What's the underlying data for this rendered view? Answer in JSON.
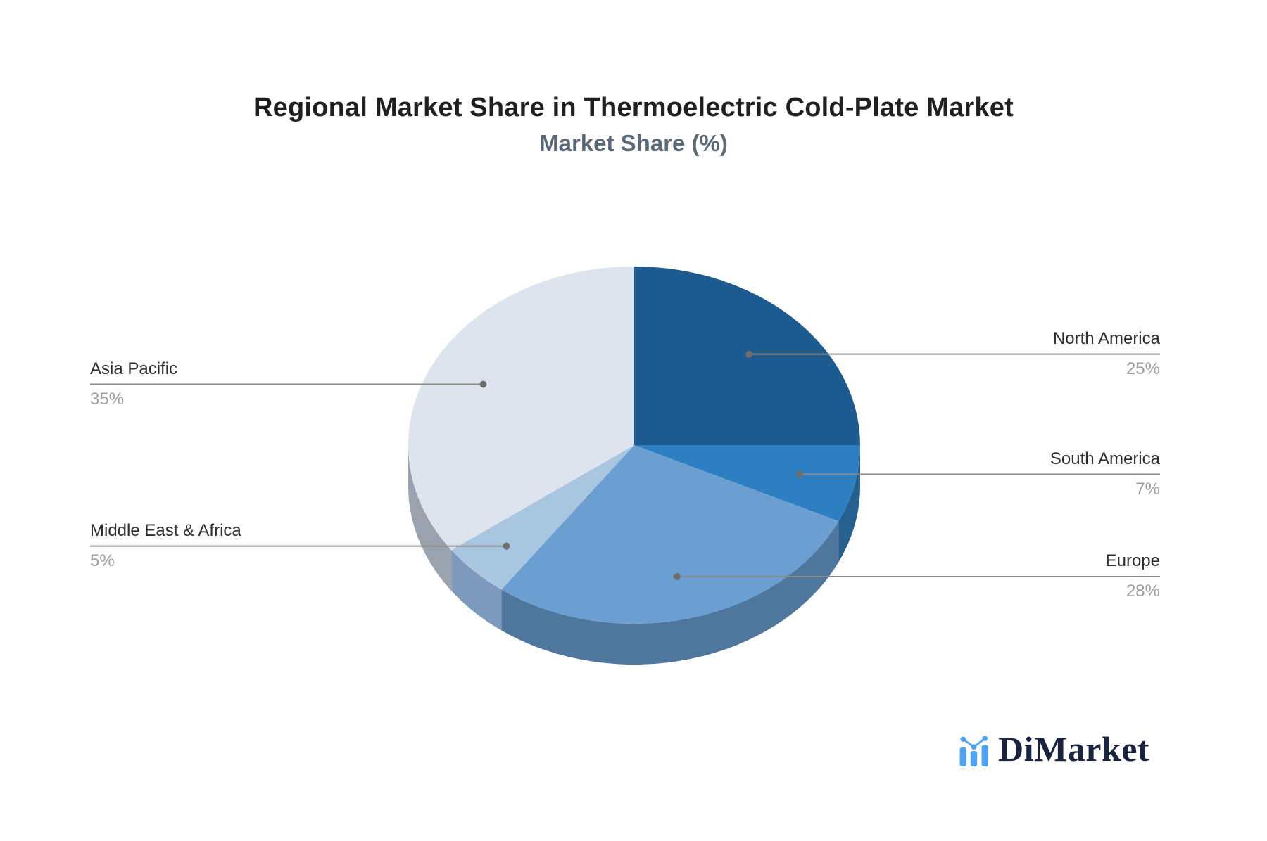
{
  "title": "Regional Market Share in Thermoelectric Cold-Plate Market",
  "subtitle": "Market Share (%)",
  "logo": {
    "text": "DiMarket",
    "icon": "bar-line-chart-icon",
    "icon_color": "#4da3f2",
    "text_color": "#1a2440"
  },
  "chart_data": {
    "type": "pie",
    "style": "3d",
    "title": "Regional Market Share in Thermoelectric Cold-Plate Market",
    "subtitle": "Market Share (%)",
    "unit": "%",
    "direction": "clockwise",
    "start_angle_deg": 0,
    "legend": "none",
    "labels_position": "outside-callout",
    "categories": [
      "North America",
      "South America",
      "Europe",
      "Middle East & Africa",
      "Asia Pacific"
    ],
    "values": [
      25,
      7,
      28,
      5,
      35
    ],
    "slices": [
      {
        "name": "North America",
        "value": 25,
        "pct_label": "25%",
        "color": "#1d5a8f",
        "wall_color": "#16436b",
        "label_side": "right"
      },
      {
        "name": "South America",
        "value": 7,
        "pct_label": "7%",
        "color": "#2e7ec2",
        "wall_color": "#26608f",
        "label_side": "right"
      },
      {
        "name": "Europe",
        "value": 28,
        "pct_label": "28%",
        "color": "#6b9fd2",
        "wall_color": "#4f779e",
        "label_side": "right"
      },
      {
        "name": "Middle East & Africa",
        "value": 5,
        "pct_label": "5%",
        "color": "#a9c6e1",
        "wall_color": "#7d9abc",
        "label_side": "left"
      },
      {
        "name": "Asia Pacific",
        "value": 35,
        "pct_label": "35%",
        "color": "#dde4ee",
        "wall_color": "#9aa2ae",
        "label_side": "left"
      }
    ],
    "callout_line_color": "#8b8b8b",
    "callout_dot_color": "#6e6e6e",
    "label_name_color": "#2d2d2d",
    "label_pct_color": "#9e9e9e",
    "background_color": "#ffffff"
  }
}
